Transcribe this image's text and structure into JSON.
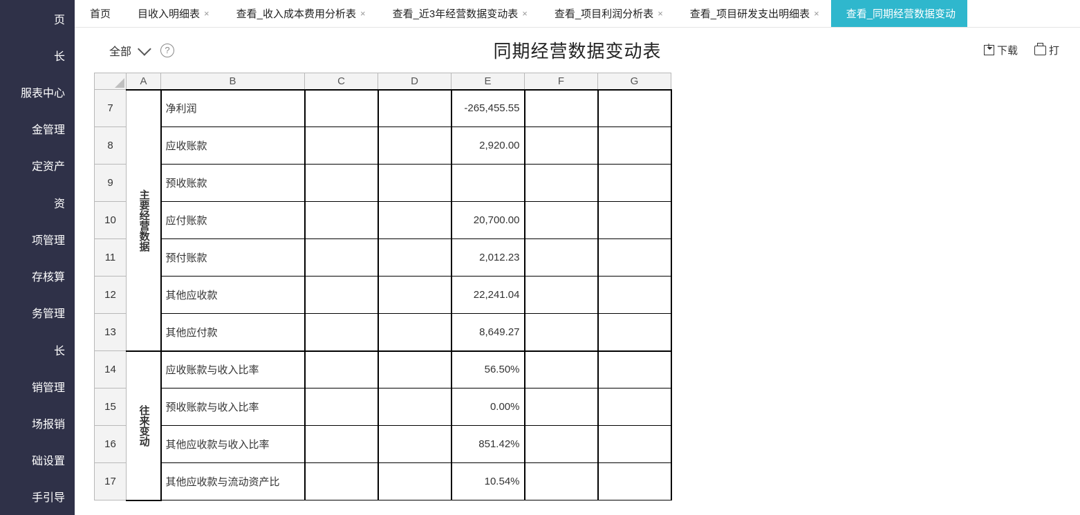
{
  "sidebar": {
    "items": [
      {
        "label": "页"
      },
      {
        "label": "长"
      },
      {
        "label": "服表中心"
      },
      {
        "label": "金管理"
      },
      {
        "label": "定资产"
      },
      {
        "label": "资"
      },
      {
        "label": "项管理"
      },
      {
        "label": "存核算"
      },
      {
        "label": "务管理"
      },
      {
        "label": "长"
      },
      {
        "label": "销管理"
      },
      {
        "label": "场报销"
      },
      {
        "label": "础设置"
      },
      {
        "label": "手引导"
      }
    ]
  },
  "tabs": [
    {
      "label": "首页",
      "closable": false
    },
    {
      "label": "目收入明细表",
      "closable": true
    },
    {
      "label": "查看_收入成本费用分析表",
      "closable": true
    },
    {
      "label": "查看_近3年经营数据变动表",
      "closable": true
    },
    {
      "label": "查看_项目利润分析表",
      "closable": true
    },
    {
      "label": "查看_项目研发支出明细表",
      "closable": true
    },
    {
      "label": "查看_同期经营数据变动",
      "closable": false,
      "active": true
    }
  ],
  "filter": {
    "label": "全部"
  },
  "page_title": "同期经营数据变动表",
  "actions": {
    "download": "下载",
    "print": "打"
  },
  "columns": [
    "",
    "A",
    "B",
    "C",
    "D",
    "E",
    "F",
    "G"
  ],
  "col_widths": {
    "rownum": 46,
    "A": 50,
    "B": 208,
    "C": 106,
    "D": 106,
    "E": 106,
    "F": 106,
    "G": 106
  },
  "groupA1": "主要经营数据",
  "groupA2": "往来变动",
  "rows": [
    {
      "n": "7",
      "b": "净利润",
      "e": "-265,455.55",
      "group_top": true
    },
    {
      "n": "8",
      "b": "应收账款",
      "e": "2,920.00"
    },
    {
      "n": "9",
      "b": "预收账款",
      "e": ""
    },
    {
      "n": "10",
      "b": "应付账款",
      "e": "20,700.00"
    },
    {
      "n": "11",
      "b": "预付账款",
      "e": "2,012.23"
    },
    {
      "n": "12",
      "b": "其他应收款",
      "e": "22,241.04"
    },
    {
      "n": "13",
      "b": "其他应付款",
      "e": "8,649.27",
      "group_bottom": true
    },
    {
      "n": "14",
      "b": "应收账款与收入比率",
      "e": "56.50%",
      "group_top": true
    },
    {
      "n": "15",
      "b": "预收账款与收入比率",
      "e": "0.00%"
    },
    {
      "n": "16",
      "b": "其他应收款与收入比率",
      "e": "851.42%"
    },
    {
      "n": "17",
      "b": "其他应收款与流动资产比",
      "e": "10.54%"
    }
  ]
}
